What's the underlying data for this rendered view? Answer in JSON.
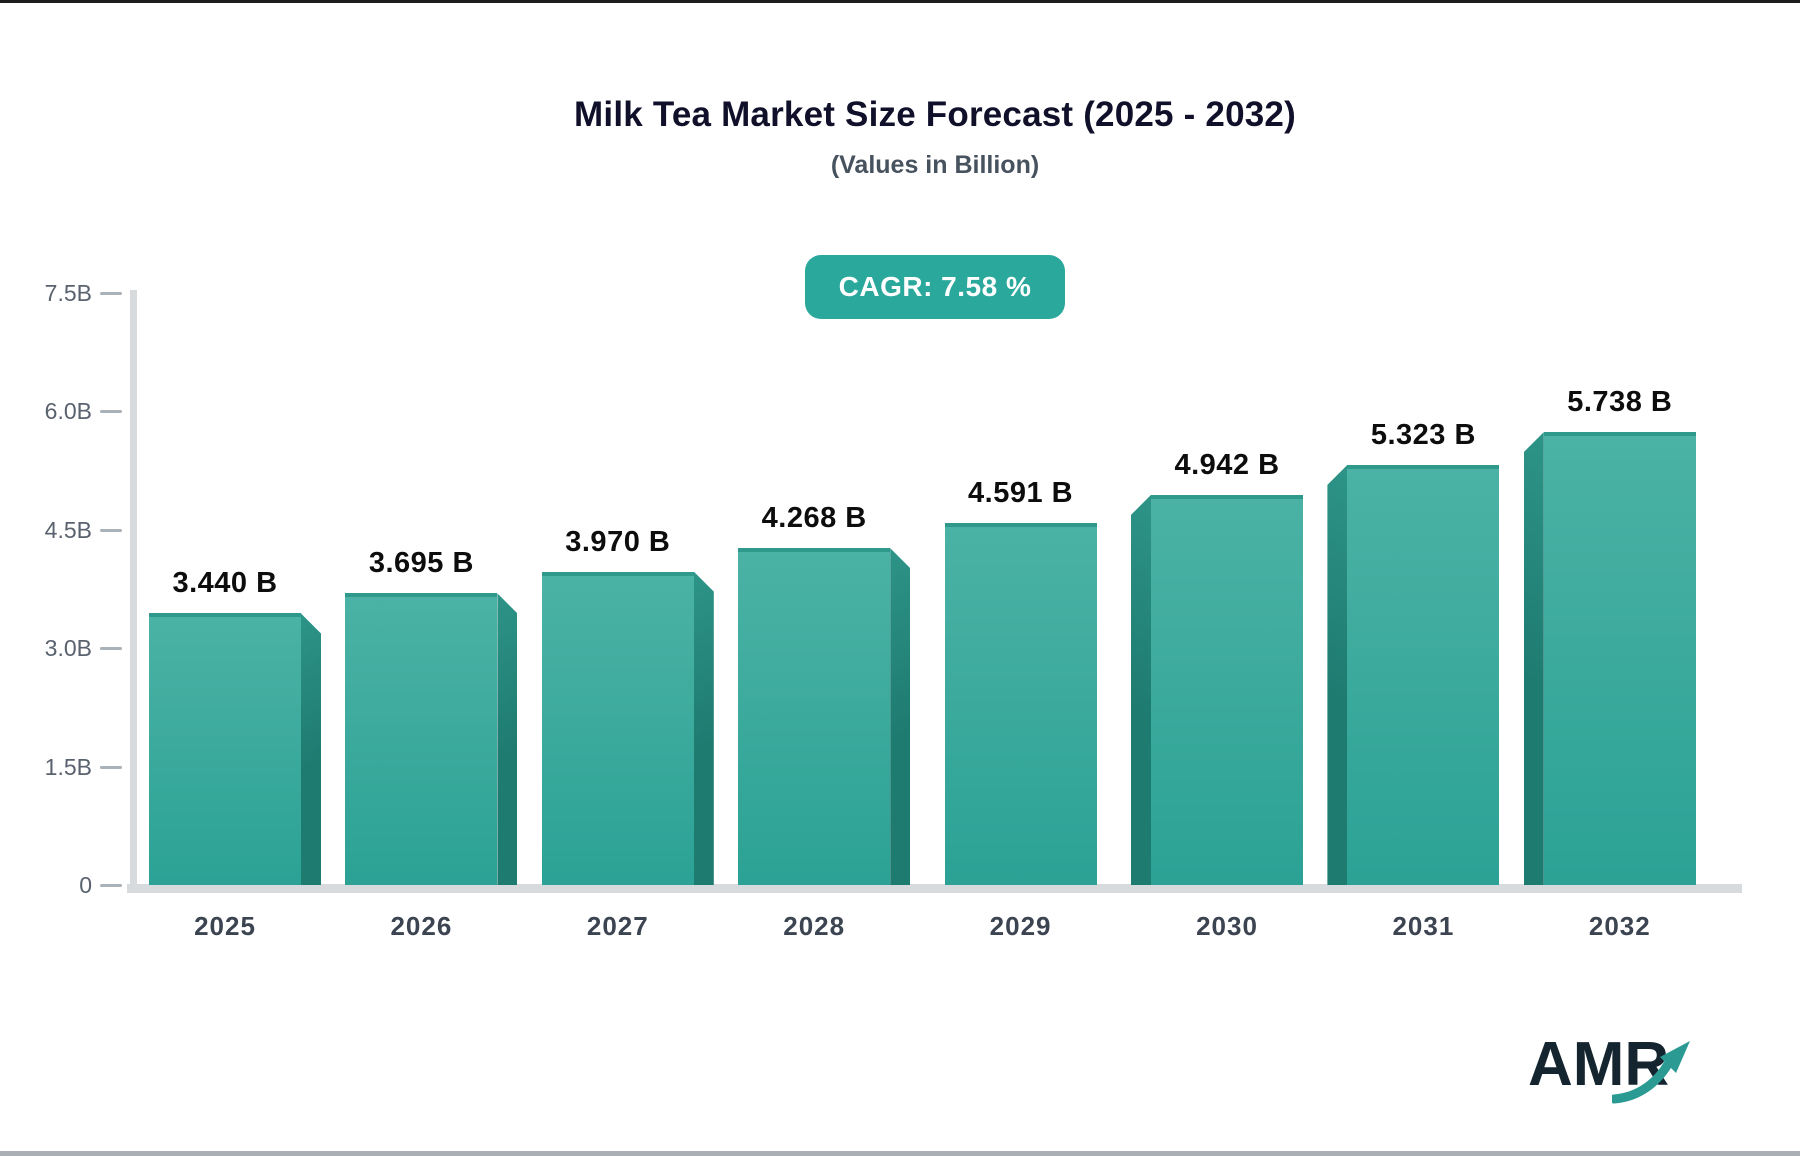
{
  "chart_data": {
    "type": "bar",
    "title": "Milk Tea Market Size Forecast (2025 - 2032)",
    "subtitle": "(Values in Billion)",
    "badge_label": "CAGR: 7.58 %",
    "categories": [
      "2025",
      "2026",
      "2027",
      "2028",
      "2029",
      "2030",
      "2031",
      "2032"
    ],
    "values": [
      3.44,
      3.695,
      3.97,
      4.268,
      4.591,
      4.942,
      5.323,
      5.738
    ],
    "value_labels": [
      "3.440 B",
      "3.695 B",
      "3.970 B",
      "4.268 B",
      "4.591 B",
      "4.942 B",
      "5.323 B",
      "5.738 B"
    ],
    "yticks": [
      {
        "label": "7.5B",
        "value": 7.5
      },
      {
        "label": "6.0B",
        "value": 6.0
      },
      {
        "label": "4.5B",
        "value": 4.5
      },
      {
        "label": "3.0B",
        "value": 3.0
      },
      {
        "label": "1.5B",
        "value": 1.5
      },
      {
        "label": "0",
        "value": 0
      }
    ],
    "ylim": [
      0,
      7.5
    ],
    "grid": false,
    "legend": "none",
    "colors": {
      "badge_bg": "#2aa89b",
      "face_top": "#4bb2a5",
      "face_bottom": "#2ba295",
      "face_edge": "#2f998c",
      "side_light": "#2e9488",
      "side_dark": "#1e7b70",
      "axis": "#d8dbde"
    }
  },
  "logo": {
    "text": "AMR",
    "text_color": "#152530",
    "arrow_color": "#2b9a93"
  }
}
